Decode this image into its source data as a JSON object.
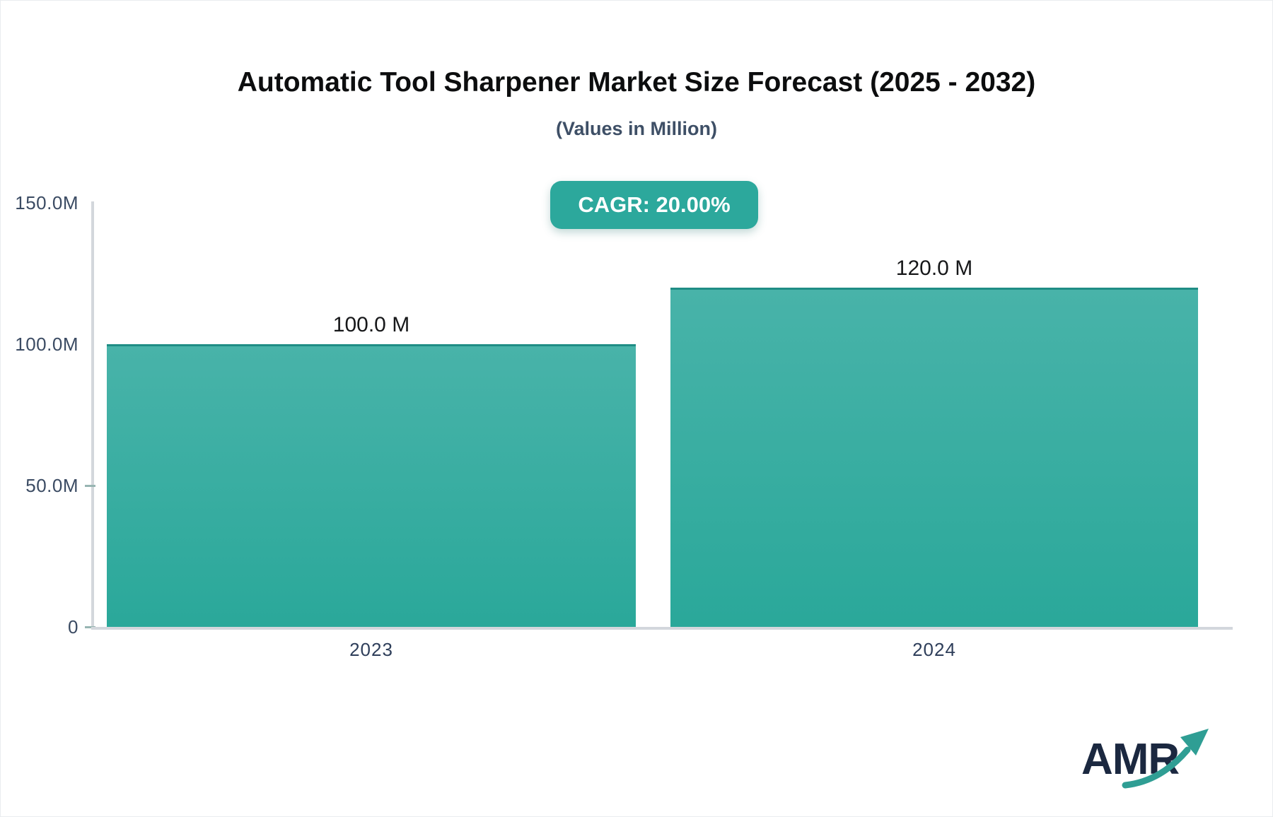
{
  "header": {
    "title": "Automatic Tool Sharpener Market Size Forecast (2025 - 2032)",
    "subtitle": "(Values in Million)"
  },
  "badge": {
    "label": "CAGR: 20.00%",
    "bg_color": "#2ca89c",
    "text_color": "#ffffff"
  },
  "chart_data": {
    "type": "bar",
    "title": "Automatic Tool Sharpener Market Size Forecast (2025 - 2032)",
    "subtitle": "(Values in Million)",
    "unit": "Million",
    "cagr": "20.00%",
    "categories": [
      "2023",
      "2024"
    ],
    "values": [
      100.0,
      120.0
    ],
    "value_labels": [
      "100.0 M",
      "120.0 M"
    ],
    "ylim": [
      0,
      150
    ],
    "yticks": [
      {
        "value": 150,
        "label": "150.0M",
        "dash": false
      },
      {
        "value": 100,
        "label": "100.0M",
        "dash": false
      },
      {
        "value": 50,
        "label": "50.0M",
        "dash": true
      },
      {
        "value": 0,
        "label": "0",
        "dash": true
      }
    ],
    "grid": false,
    "legend": false,
    "bar_color_top": "#48b3a9",
    "bar_color_bottom": "#2aa89a",
    "bar_top_edge_color": "#1f8d85",
    "axis_color": "#d3d7dc"
  },
  "logo": {
    "text": "AMR",
    "arrow_icon": "up-trend-arrow",
    "text_color": "#1b2840",
    "arrow_color": "#2f9e94"
  }
}
